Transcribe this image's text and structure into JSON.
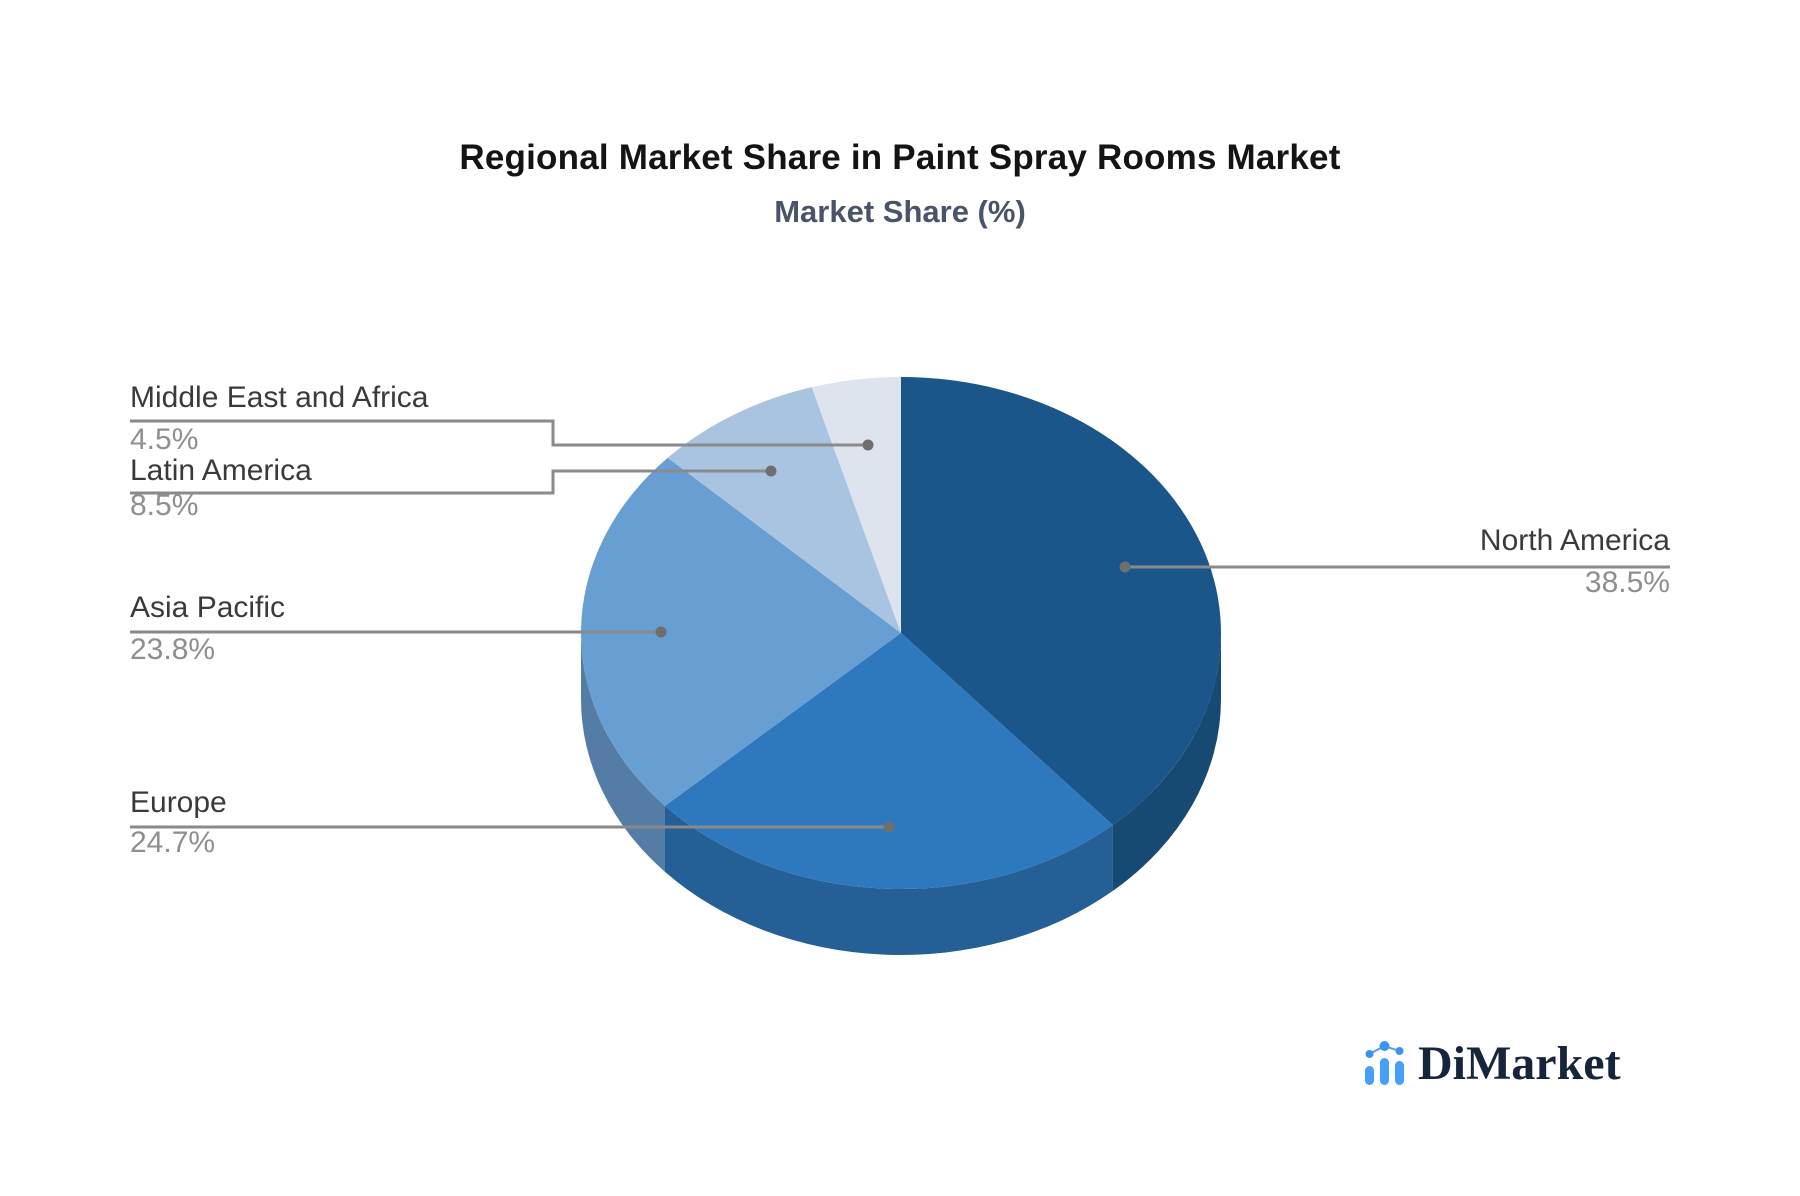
{
  "title": "Regional Market Share in Paint Spray Rooms Market",
  "subtitle": "Market Share (%)",
  "brand": {
    "name": "DiMarket"
  },
  "chart_data": {
    "type": "pie",
    "title": "Regional Market Share in Paint Spray Rooms Market",
    "subtitle": "Market Share (%)",
    "unit": "%",
    "style": "3d-pie",
    "start_angle": "12-oclock",
    "direction": "clockwise",
    "legend_position": "none",
    "labels_style": "callout-lines",
    "slices": [
      {
        "label": "North America",
        "value": 38.5,
        "display": "38.5%",
        "color": "#1b568a",
        "side_color": "#174a73"
      },
      {
        "label": "Europe",
        "value": 24.7,
        "display": "24.7%",
        "color": "#2e79bd",
        "side_color": "#245f95"
      },
      {
        "label": "Asia Pacific",
        "value": 23.8,
        "display": "23.8%",
        "color": "#689fd3",
        "side_color": "#547da5"
      },
      {
        "label": "Latin America",
        "value": 8.5,
        "display": "8.5%",
        "color": "#a9c4e1",
        "side_color": "#87a5c4"
      },
      {
        "label": "Middle East and Africa",
        "value": 4.5,
        "display": "4.5%",
        "color": "#dde4ee",
        "side_color": "#b9c4d4"
      }
    ],
    "callout_color": "#8a8a8a",
    "logo_blue": "#46a0f6"
  }
}
